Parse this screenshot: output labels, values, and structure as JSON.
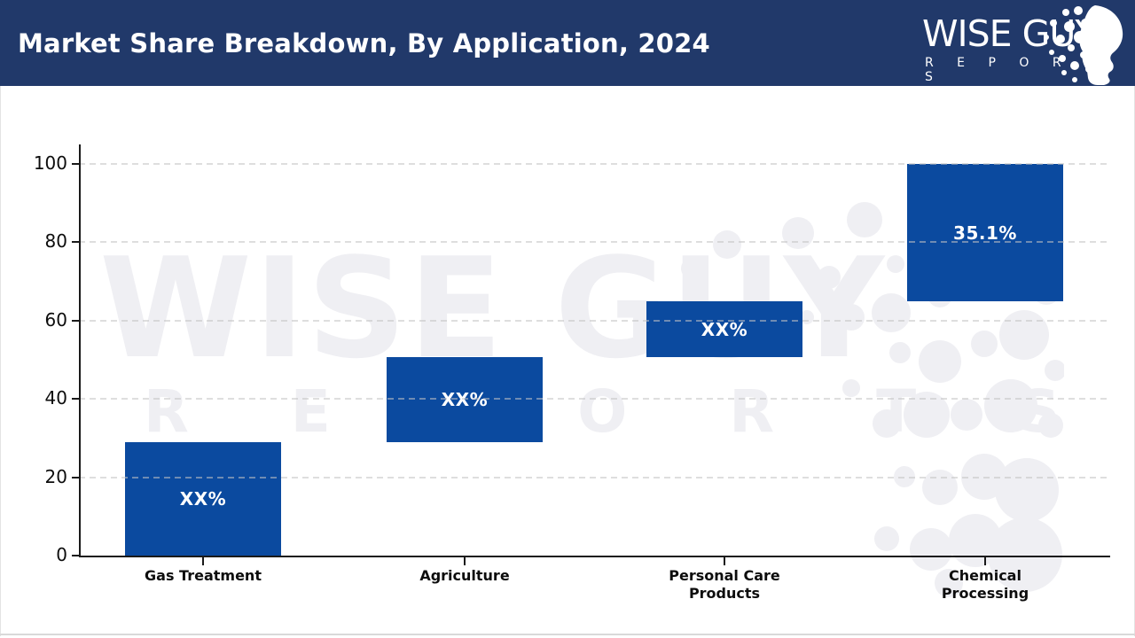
{
  "header": {
    "title": "Market Share Breakdown, By Application, 2024",
    "logo": {
      "line1": "WISE GUY",
      "line2": "R E P O R T S"
    }
  },
  "watermark": {
    "line1": "WISE GUY",
    "line2": "R E P O R T S"
  },
  "chart_data": {
    "type": "bar",
    "subtype": "floating-segment-waterfall",
    "title": "Market Share Breakdown, By Application, 2024",
    "categories": [
      "Gas Treatment",
      "Agriculture",
      "Personal Care\nProducts",
      "Chemical\nProcessing"
    ],
    "bars": [
      {
        "category": "Gas Treatment",
        "start": 0,
        "end": 29,
        "size": 29,
        "label": "XX%"
      },
      {
        "category": "Agriculture",
        "start": 29,
        "end": 50.7,
        "size": 21.7,
        "label": "XX%"
      },
      {
        "category": "Personal Care Products",
        "start": 50.7,
        "end": 64.9,
        "size": 14.2,
        "label": "XX%"
      },
      {
        "category": "Chemical Processing",
        "start": 64.9,
        "end": 100,
        "size": 35.1,
        "label": "35.1%"
      }
    ],
    "yticks": [
      0,
      20,
      40,
      60,
      80,
      100
    ],
    "ylim": [
      0,
      105
    ],
    "xlabel": "",
    "ylabel": "",
    "legend": "none",
    "grid": "horizontal dashed, drawn over bars",
    "colors": {
      "bar": "#0b4a9f",
      "bar_label": "#ffffff",
      "header_bg": "#21396a",
      "header_text": "#ffffff",
      "axis": "#1a1a1a",
      "gridline": "#e0e0e0",
      "watermark": "#efeff3"
    }
  }
}
